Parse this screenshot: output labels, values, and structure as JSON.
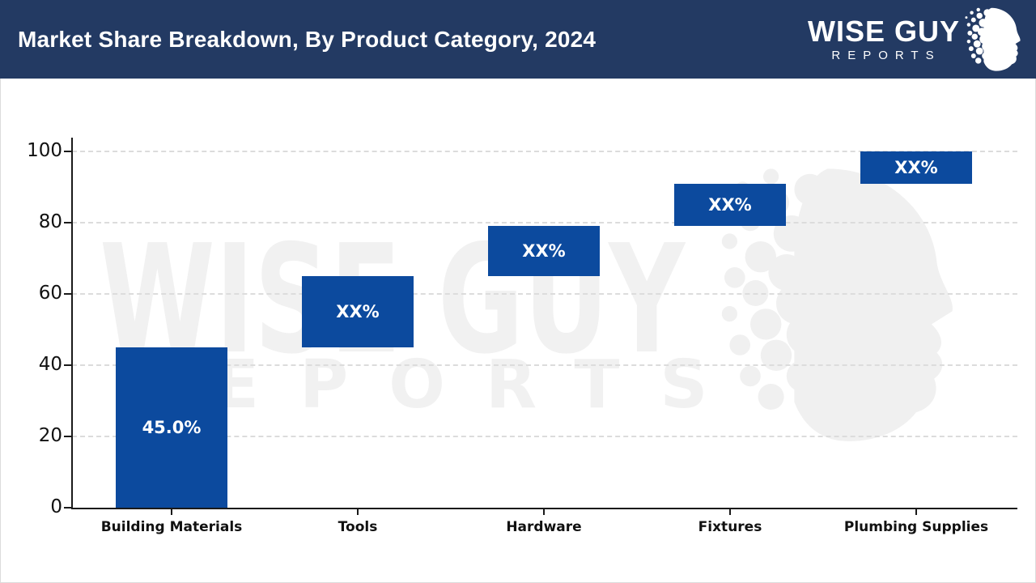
{
  "header": {
    "title": "Market Share Breakdown, By Product Category, 2024",
    "logo": {
      "line1": "WISE GUY",
      "line2": "REPORTS"
    }
  },
  "watermark": {
    "line1": "WISE GUY",
    "line2": "REPORTS"
  },
  "chart_data": {
    "type": "bar",
    "subtype": "floating-waterfall",
    "title": "Market Share Breakdown, By Product Category, 2024",
    "categories": [
      "Building Materials",
      "Tools",
      "Hardware",
      "Fixtures",
      "Plumbing Supplies"
    ],
    "series": [
      {
        "name": "Market Share",
        "segments": [
          {
            "category": "Building Materials",
            "start": 0,
            "end": 45,
            "value": 45,
            "label": "45.0%"
          },
          {
            "category": "Tools",
            "start": 45,
            "end": 65,
            "value": 20,
            "label": "XX%"
          },
          {
            "category": "Hardware",
            "start": 65,
            "end": 79,
            "value": 14,
            "label": "XX%"
          },
          {
            "category": "Fixtures",
            "start": 79,
            "end": 91,
            "value": 12,
            "label": "XX%"
          },
          {
            "category": "Plumbing Supplies",
            "start": 91,
            "end": 100,
            "value": 9,
            "label": "XX%"
          }
        ]
      }
    ],
    "yticks": [
      0,
      20,
      40,
      60,
      80,
      100
    ],
    "ylim": [
      0,
      104
    ],
    "xlabel": "",
    "ylabel": "",
    "grid": "horizontal-dashed",
    "legend": "none",
    "bar_color": "#0c4a9e",
    "bar_label_color": "#ffffff"
  },
  "colors": {
    "header_bg": "#233a63",
    "bar": "#0c4a9e",
    "grid": "#dcdcdc",
    "axis": "#1a1a1a",
    "watermark": "#f0f0f0",
    "title_text": "#ffffff"
  }
}
